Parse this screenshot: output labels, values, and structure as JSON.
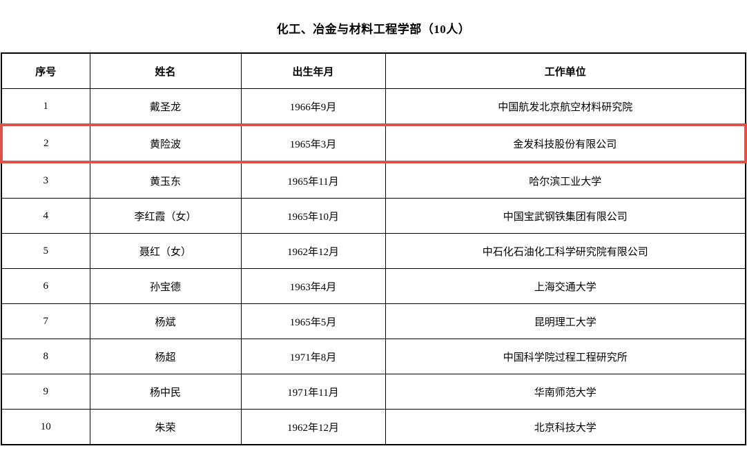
{
  "page": {
    "title": "化工、冶金与材料工程学部（10人）"
  },
  "table": {
    "columns": [
      "序号",
      "姓名",
      "出生年月",
      "工作单位"
    ],
    "rows": [
      {
        "no": "1",
        "name": "戴圣龙",
        "birth": "1966年9月",
        "org": "中国航发北京航空材料研究院",
        "highlighted": false
      },
      {
        "no": "2",
        "name": "黄险波",
        "birth": "1965年3月",
        "org": "金发科技股份有限公司",
        "highlighted": true
      },
      {
        "no": "3",
        "name": "黄玉东",
        "birth": "1965年11月",
        "org": "哈尔滨工业大学",
        "highlighted": false
      },
      {
        "no": "4",
        "name": "李红霞（女）",
        "birth": "1965年10月",
        "org": "中国宝武钢铁集团有限公司",
        "highlighted": false
      },
      {
        "no": "5",
        "name": "聂红（女）",
        "birth": "1962年12月",
        "org": "中石化石油化工科学研究院有限公司",
        "highlighted": false
      },
      {
        "no": "6",
        "name": "孙宝德",
        "birth": "1963年4月",
        "org": "上海交通大学",
        "highlighted": false
      },
      {
        "no": "7",
        "name": "杨斌",
        "birth": "1965年5月",
        "org": "昆明理工大学",
        "highlighted": false
      },
      {
        "no": "8",
        "name": "杨超",
        "birth": "1971年8月",
        "org": "中国科学院过程工程研究所",
        "highlighted": false
      },
      {
        "no": "9",
        "name": "杨中民",
        "birth": "1971年11月",
        "org": "华南师范大学",
        "highlighted": false
      },
      {
        "no": "10",
        "name": "朱荣",
        "birth": "1962年12月",
        "org": "北京科技大学",
        "highlighted": false
      }
    ],
    "highlight_color": "#dd5349",
    "border_color": "#000000"
  }
}
